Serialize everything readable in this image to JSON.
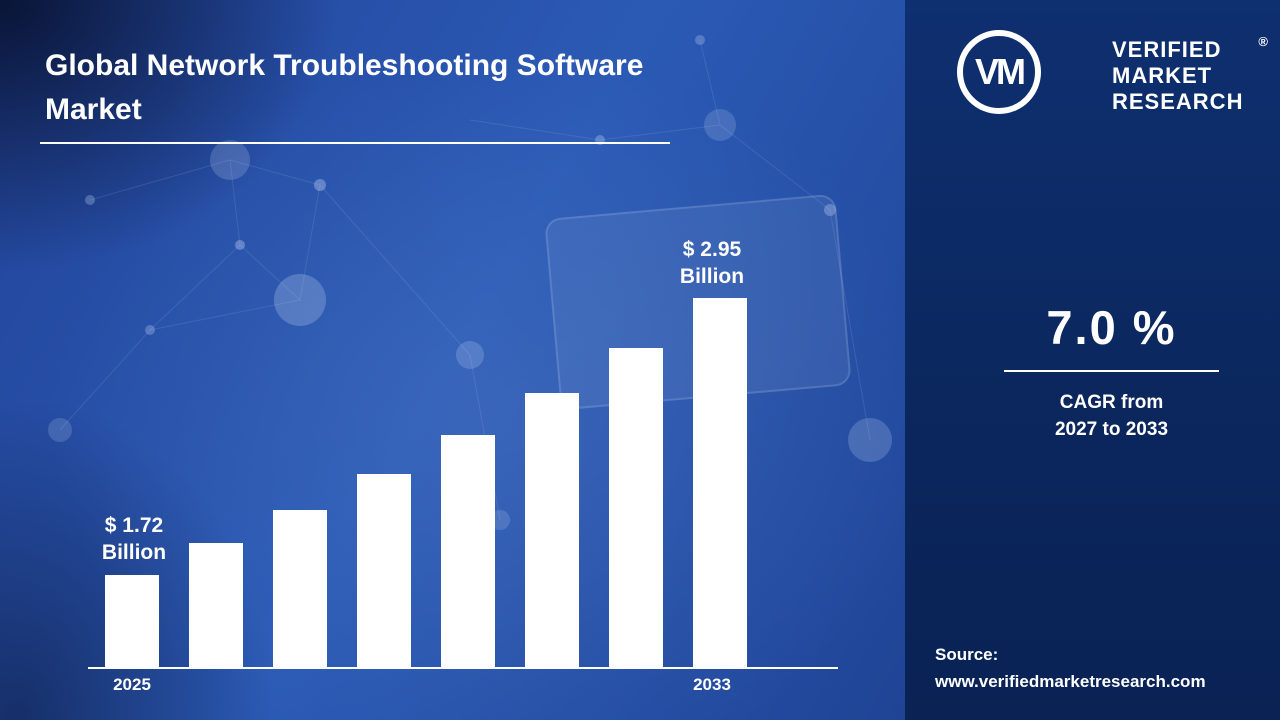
{
  "title": "Global Network Troubleshooting Software Market",
  "brand": {
    "logo_text": "VM",
    "name_lines": [
      "VERIFIED",
      "MARKET",
      "RESEARCH"
    ],
    "registered": "®"
  },
  "stats": {
    "cagr_value": "7.0 %",
    "cagr_caption_line1": "CAGR from",
    "cagr_caption_line2": "2027 to 2033"
  },
  "source": {
    "label": "Source:",
    "url": "www.verifiedmarketresearch.com"
  },
  "chart_data": {
    "type": "bar",
    "title": "Global Network Troubleshooting Software Market",
    "unit": "USD Billion",
    "categories": [
      "2025",
      "",
      "",
      "",
      "",
      "",
      "",
      "2033"
    ],
    "values": [
      1.72,
      1.86,
      2.01,
      2.17,
      2.34,
      2.53,
      2.73,
      2.95
    ],
    "x_axis_labels_visible": [
      "2025",
      "2033"
    ],
    "annotations": [
      {
        "bar_index": 0,
        "line1": "$ 1.72",
        "line2": "Billion"
      },
      {
        "bar_index": 7,
        "line1": "$ 2.95",
        "line2": "Billion"
      }
    ],
    "ylim": [
      1.31,
      3.0
    ],
    "bar_color": "#ffffff",
    "grid": false,
    "legend": "none",
    "baseline": "visible"
  },
  "colors": {
    "background_main": "#2b5ab5",
    "panel": "#0e2f70",
    "text": "#ffffff",
    "bar": "#ffffff"
  }
}
